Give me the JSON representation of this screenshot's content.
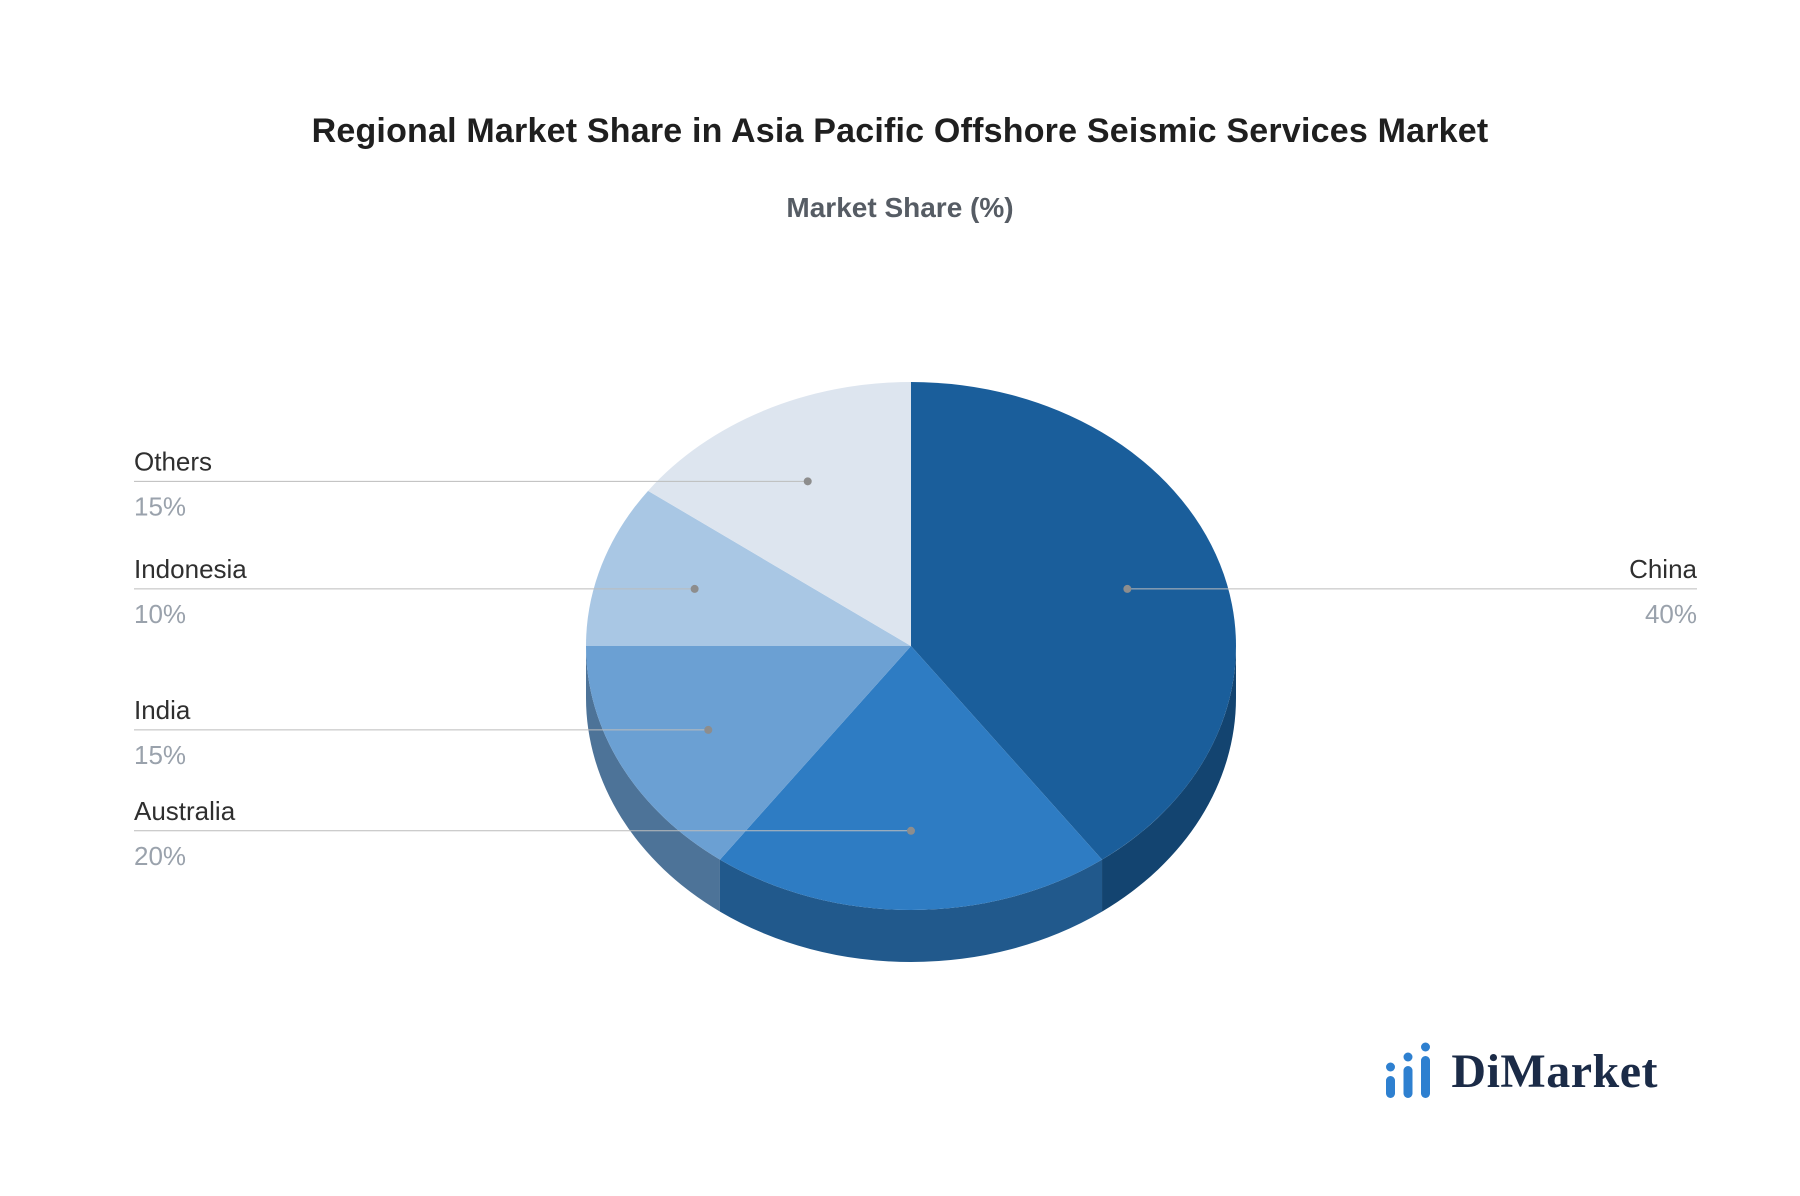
{
  "header": {
    "title": "Regional Market Share in Asia Pacific Offshore Seismic Services Market",
    "subtitle": "Market Share (%)"
  },
  "brand": {
    "name": "DiMarket",
    "icon": "bar-chart-logo-icon",
    "icon_color": "#2E80D0",
    "text_color": "#1B2B47"
  },
  "chart_data": {
    "type": "pie",
    "title": "Regional Market Share in Asia Pacific Offshore Seismic Services Market",
    "subtitle": "Market Share (%)",
    "unit": "%",
    "style": "3d-pie",
    "start_angle_deg": -90,
    "direction": "clockwise",
    "legend_position": "callout-labels",
    "slices": [
      {
        "label": "China",
        "value": 40,
        "percent_label": "40%",
        "color": "#1A5E9B",
        "label_side": "right"
      },
      {
        "label": "Australia",
        "value": 20,
        "percent_label": "20%",
        "color": "#2E7CC3",
        "label_side": "left"
      },
      {
        "label": "India",
        "value": 15,
        "percent_label": "15%",
        "color": "#6BA0D3",
        "label_side": "left"
      },
      {
        "label": "Indonesia",
        "value": 10,
        "percent_label": "10%",
        "color": "#A9C7E4",
        "label_side": "left"
      },
      {
        "label": "Others",
        "value": 15,
        "percent_label": "15%",
        "color": "#DDE5EF",
        "label_side": "left"
      }
    ]
  }
}
